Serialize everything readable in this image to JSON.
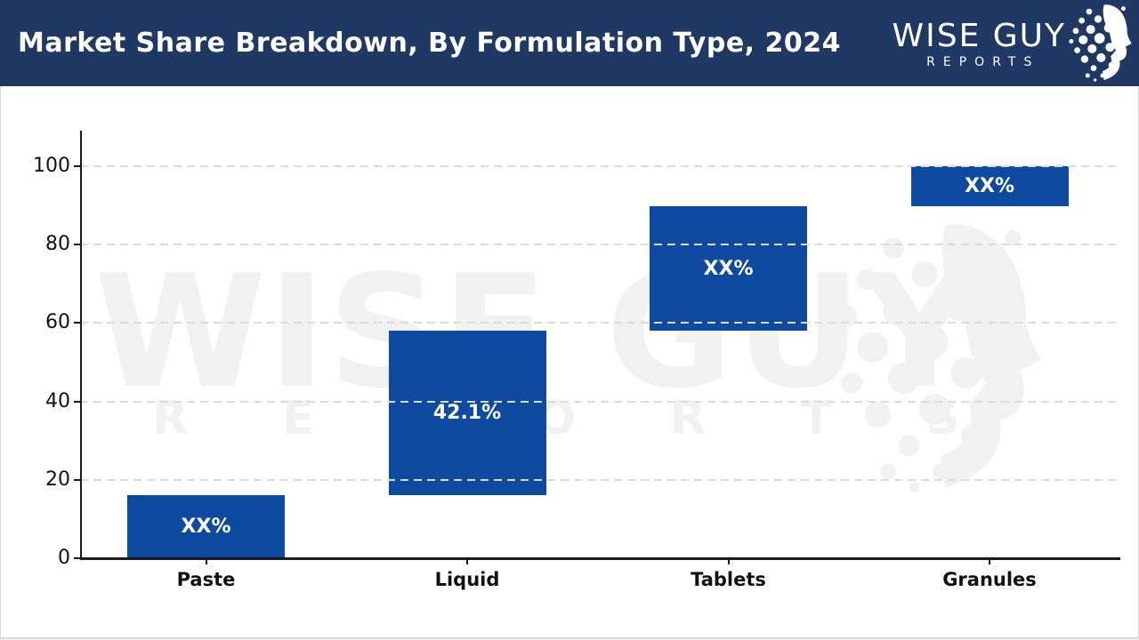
{
  "header": {
    "title": "Market Share Breakdown, By Formulation Type, 2024",
    "logo": {
      "line1": "WISE GUY",
      "line2": "REPORTS"
    },
    "bg_color": "#1f3864"
  },
  "watermark": {
    "line1": "WISE GUY",
    "line2": "R E P O R T S",
    "color": "#f1f1f1"
  },
  "chart_data": {
    "type": "bar",
    "variant": "floating_segment_waterfall",
    "title": "Market Share Breakdown, By Formulation Type, 2024",
    "categories": [
      "Paste",
      "Liquid",
      "Tablets",
      "Granules"
    ],
    "segments": [
      {
        "category": "Paste",
        "start": 0,
        "end": 16,
        "height": 16,
        "value_label": "XX%"
      },
      {
        "category": "Liquid",
        "start": 16,
        "end": 58.1,
        "height": 42.1,
        "value_label": "42.1%"
      },
      {
        "category": "Tablets",
        "start": 58.1,
        "end": 89.7,
        "height": 31.6,
        "value_label": "XX%"
      },
      {
        "category": "Granules",
        "start": 89.7,
        "end": 100,
        "height": 10.3,
        "value_label": "XX%"
      }
    ],
    "xlabel": "",
    "ylabel": "",
    "ylim": [
      0,
      100
    ],
    "yticks": [
      0,
      20,
      40,
      60,
      80,
      100
    ],
    "grid": {
      "horizontal": true,
      "style": "dashed",
      "color": "#dcdcdc"
    },
    "legend": "none",
    "bar_color": "#0d4aa0",
    "bar_label_color": "#ffffff",
    "axis_color": "#1a1a1a",
    "tick_label_color": "#111111"
  }
}
